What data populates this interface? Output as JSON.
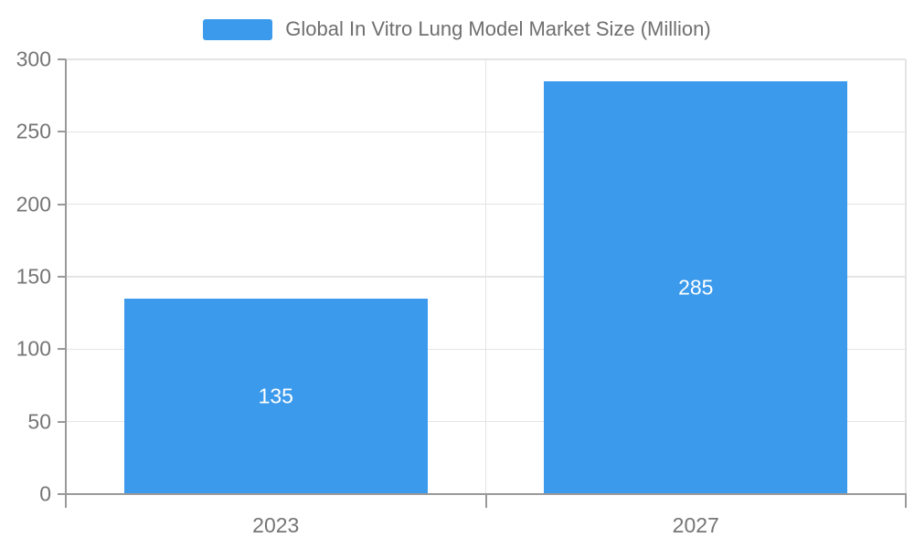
{
  "legend": {
    "label": "Global In Vitro Lung Model Market Size (Million)"
  },
  "chart_data": {
    "type": "bar",
    "title": "Global In Vitro Lung Model Market Size (Million)",
    "categories": [
      "2023",
      "2027"
    ],
    "values": [
      135,
      285
    ],
    "bar_value_labels": [
      "135",
      "285"
    ],
    "xlabel": "",
    "ylabel": "",
    "ylim": [
      0,
      300
    ],
    "ytick_step": 50,
    "ytick_labels": [
      "0",
      "50",
      "100",
      "150",
      "200",
      "250",
      "300"
    ],
    "grid": true,
    "legend_position": "top-center",
    "value_label_position": "inside-center",
    "colors": {
      "bar": "#3b9aec",
      "bar_value_label": "#ffffff",
      "axis_line": "#999999",
      "gridline": "#e4e4e4",
      "tick_text": "#757575",
      "legend_text": "#6f6f6f",
      "background": "#ffffff"
    }
  }
}
